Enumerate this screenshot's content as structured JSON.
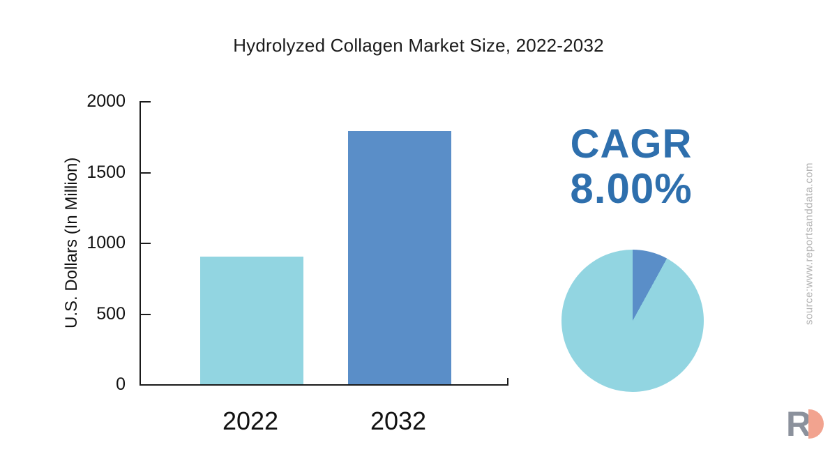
{
  "title": "Hydrolyzed Collagen Market Size, 2022-2032",
  "chart_data": [
    {
      "type": "bar",
      "title": "Hydrolyzed Collagen Market Size, 2022-2032",
      "categories": [
        "2022",
        "2032"
      ],
      "values": [
        900,
        1790
      ],
      "xlabel": "",
      "ylabel": "U.S. Dollars (In Million)",
      "ylim": [
        0,
        2000
      ],
      "yticks": [
        0,
        500,
        1000,
        1500,
        2000
      ],
      "grid": false,
      "legend": "none",
      "bar_colors": [
        "#92d5e1",
        "#5a8ec8"
      ]
    },
    {
      "type": "pie",
      "slices": [
        {
          "label": "CAGR 8.00%",
          "value": 8,
          "color": "#5a8ec8"
        },
        {
          "label": "remainder",
          "value": 92,
          "color": "#92d5e1"
        }
      ],
      "start_angle": "12 o'clock",
      "direction": "clockwise"
    }
  ],
  "cagr": {
    "label": "CAGR",
    "value": "8.00%",
    "color": "#2e6fad"
  },
  "source": {
    "text": "source:www.reportsanddata.com"
  },
  "logo": {
    "letter": "R",
    "r_color": "#8b919c",
    "d_color": "#f2a38f"
  },
  "colors": {
    "bar_2022": "#92d5e1",
    "bar_2032": "#5a8ec8",
    "cagr_text": "#2e6fad",
    "axis": "#1a1a1a",
    "watermark": "#b4b4b4"
  }
}
